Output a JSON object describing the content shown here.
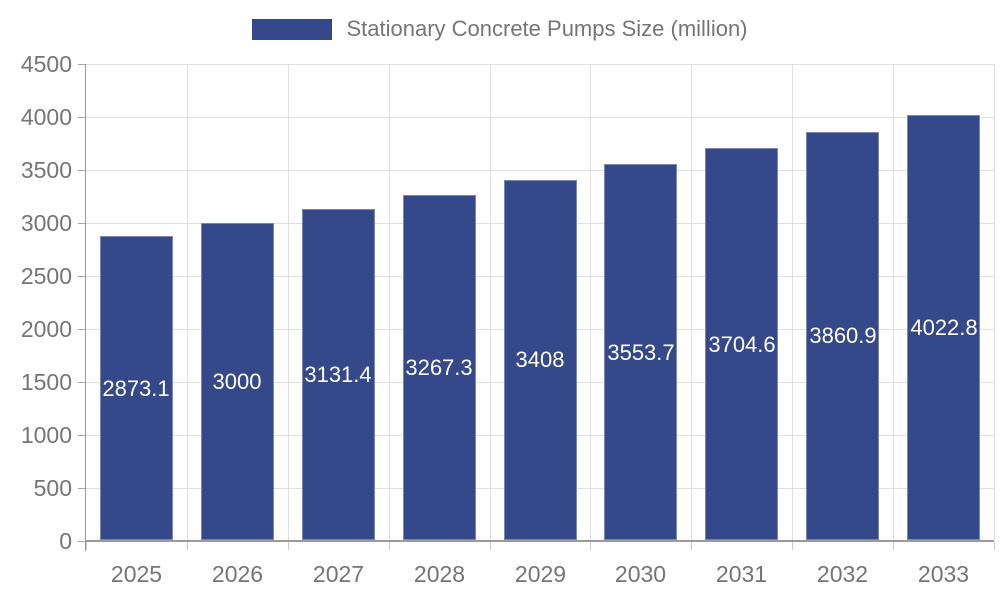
{
  "legend": {
    "label": "Stationary Concrete Pumps Size (million)"
  },
  "chart_data": {
    "type": "bar",
    "title": "Stationary Concrete Pumps Size (million)",
    "categories": [
      "2025",
      "2026",
      "2027",
      "2028",
      "2029",
      "2030",
      "2031",
      "2032",
      "2033"
    ],
    "values": [
      2873.1,
      3000,
      3131.4,
      3267.3,
      3408,
      3553.7,
      3704.6,
      3860.9,
      4022.8
    ],
    "xlabel": "",
    "ylabel": "",
    "ylim": [
      0,
      4500
    ],
    "yticks": [
      0,
      500,
      1000,
      1500,
      2000,
      2500,
      3000,
      3500,
      4000,
      4500
    ],
    "grid": true,
    "legend_position": "top",
    "value_label_position": "inside-center",
    "colors": {
      "bar": "#35488a",
      "bar_border": "#8d98c2",
      "value_label": "#ffffff",
      "axis_text": "#757575",
      "gridline": "#e0e0e0",
      "axis_line": "#9a9a9a"
    }
  }
}
